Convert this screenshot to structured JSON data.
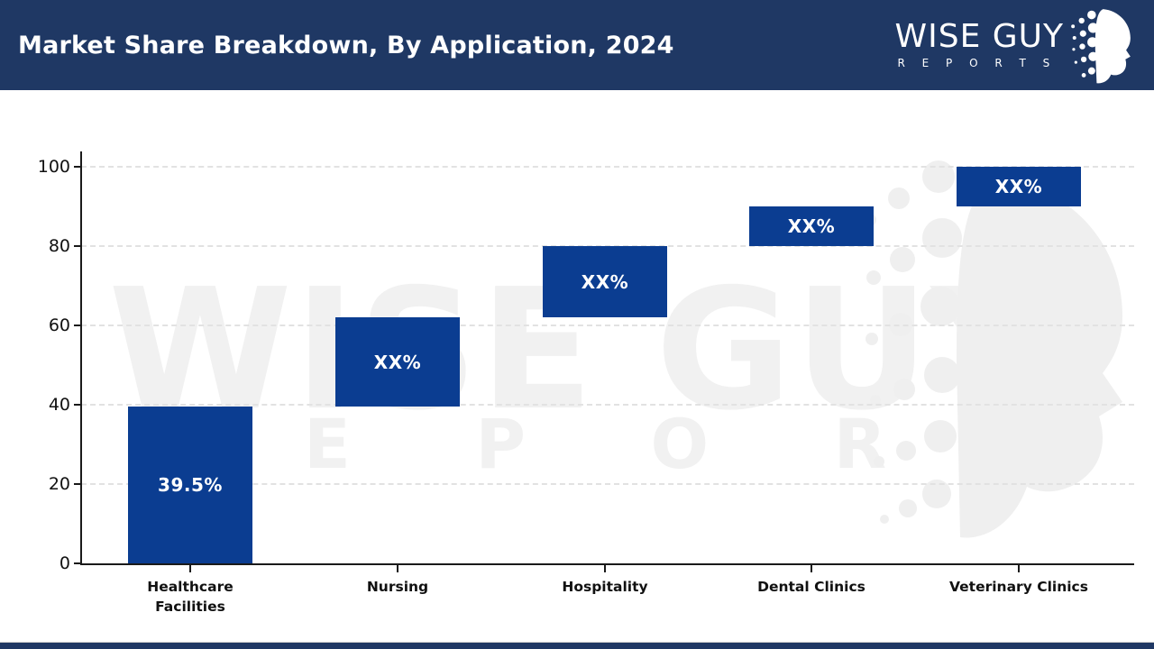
{
  "header": {
    "title": "Market Share Breakdown, By Application, 2024",
    "logo": {
      "wordmark": "WISE GUY",
      "subtext": "R E P O R T S"
    }
  },
  "watermark": {
    "wordmark": "WISE GUY",
    "subtext": "R E P O R T S"
  },
  "chart_data": {
    "type": "bar",
    "subtype": "floating-waterfall",
    "title": "Market Share Breakdown, By Application, 2024",
    "xlabel": "",
    "ylabel": "",
    "ylim": [
      0,
      105
    ],
    "yticks": [
      0,
      20,
      40,
      60,
      80,
      100
    ],
    "grid": "horizontal-dashed",
    "legend": "none",
    "bar_color": "#0b3d91",
    "bar_label_color": "#ffffff",
    "axis_color": "#1a1a1a",
    "categories": [
      "Healthcare Facilities",
      "Nursing",
      "Hospitality",
      "Dental Clinics",
      "Veterinary Clinics"
    ],
    "bars": [
      {
        "category": "Healthcare Facilities",
        "category_lines": [
          "Healthcare",
          "Facilities"
        ],
        "start": 0,
        "end": 39.5,
        "label": "39.5%"
      },
      {
        "category": "Nursing",
        "category_lines": [
          "Nursing"
        ],
        "start": 39.5,
        "end": 62,
        "label": "XX%"
      },
      {
        "category": "Hospitality",
        "category_lines": [
          "Hospitality"
        ],
        "start": 62,
        "end": 80,
        "label": "XX%"
      },
      {
        "category": "Dental Clinics",
        "category_lines": [
          "Dental Clinics"
        ],
        "start": 80,
        "end": 90,
        "label": "XX%"
      },
      {
        "category": "Veterinary Clinics",
        "category_lines": [
          "Veterinary Clinics"
        ],
        "start": 90,
        "end": 100,
        "label": "XX%"
      }
    ]
  }
}
